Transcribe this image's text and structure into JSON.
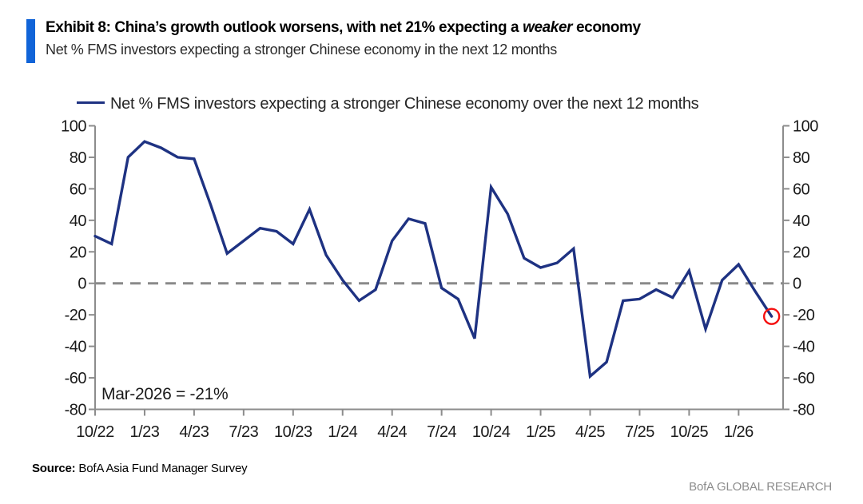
{
  "header": {
    "title_prefix": "Exhibit 8: China’s growth outlook worsens, with net 21% expecting a ",
    "title_italic": "weaker",
    "title_suffix": " economy",
    "subtitle": "Net % FMS investors expecting a stronger Chinese economy in the next 12 months"
  },
  "legend": {
    "label": "Net % FMS investors expecting a stronger Chinese economy over the next 12 months"
  },
  "annotation": {
    "text": "Mar-2026 = -21%"
  },
  "footer": {
    "source_label": "Source:",
    "source_text": " BofA Asia Fund Manager Survey",
    "brand": "BofA GLOBAL RESEARCH"
  },
  "colors": {
    "accent_bar": "#1164d8",
    "line": "#1e3282",
    "zero_line": "#8a8a8a",
    "axis": "#8c8c8c",
    "annotation_red": "#f50f0f"
  },
  "chart_data": {
    "type": "line",
    "title": "Net % FMS investors expecting a stronger Chinese economy over the next 12 months",
    "x": [
      "10/22",
      "11/22",
      "12/22",
      "1/23",
      "2/23",
      "3/23",
      "4/23",
      "5/23",
      "6/23",
      "7/23",
      "8/23",
      "9/23",
      "10/23",
      "11/23",
      "12/23",
      "1/24",
      "2/24",
      "3/24",
      "4/24",
      "5/24",
      "6/24",
      "7/24",
      "8/24",
      "9/24",
      "10/24",
      "11/24",
      "12/24",
      "1/25",
      "2/25",
      "3/25",
      "4/25",
      "5/25",
      "6/25",
      "7/25",
      "8/25",
      "9/25",
      "10/25",
      "11/25",
      "12/25",
      "1/26",
      "2/26",
      "3/26"
    ],
    "values": [
      30,
      25,
      80,
      90,
      86,
      80,
      79,
      50,
      19,
      27,
      35,
      33,
      25,
      47,
      18,
      2,
      -11,
      -4,
      27,
      41,
      38,
      -3,
      -10,
      -35,
      61,
      44,
      16,
      10,
      13,
      22,
      -59,
      -50,
      -11,
      -10,
      -4,
      -9,
      8,
      -29,
      2,
      12,
      -5,
      -21
    ],
    "x_tick_labels": [
      "10/22",
      "1/23",
      "4/23",
      "7/23",
      "10/23",
      "1/24",
      "4/24",
      "7/24",
      "10/24",
      "1/25",
      "4/25",
      "7/25",
      "10/25",
      "1/26"
    ],
    "x_tick_interval_months": 3,
    "y_ticks": [
      100,
      80,
      60,
      40,
      20,
      0,
      -20,
      -40,
      -60,
      -80
    ],
    "ylim": [
      -80,
      100
    ],
    "grid": "zero-dashed-line-only",
    "legend_position": "top",
    "highlight_last_point": true,
    "last_point_label": "Mar-2026 = -21%"
  }
}
